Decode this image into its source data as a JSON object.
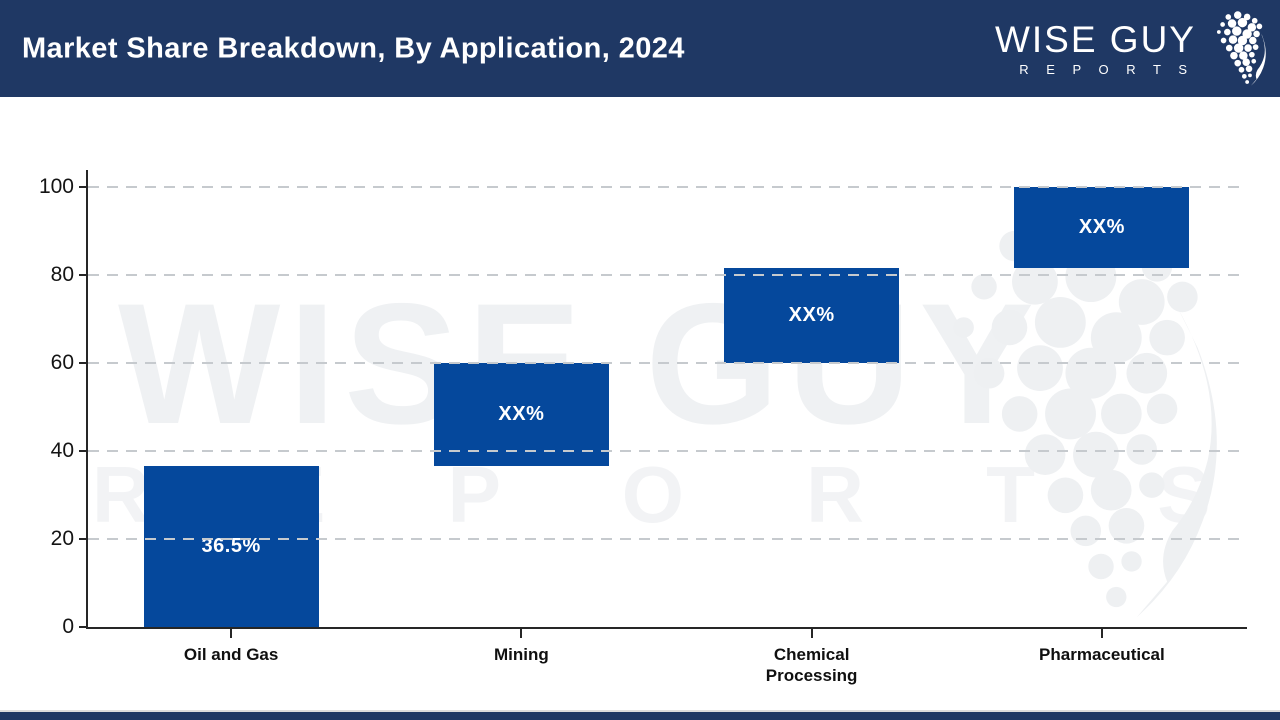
{
  "header": {
    "title": "Market Share Breakdown, By Application, 2024",
    "logo_line1": "WISE GUY",
    "logo_line2": "R E P O R T S",
    "bg_color": "#1f3864"
  },
  "watermark": {
    "line1": "WISE GUY",
    "line2": "R E P O R T S"
  },
  "chart_data": {
    "type": "bar",
    "variant": "waterfall",
    "title": "Market Share Breakdown, By Application, 2024",
    "unit": "percent market share",
    "categories": [
      "Oil and Gas",
      "Mining",
      "Chemical Processing",
      "Pharmaceutical"
    ],
    "segments": [
      {
        "category": "Oil and Gas",
        "start": 0,
        "end": 36.5,
        "label": "36.5%"
      },
      {
        "category": "Mining",
        "start": 36.5,
        "end": 60,
        "label": "XX%"
      },
      {
        "category": "Chemical Processing",
        "start": 60,
        "end": 81.5,
        "label": "XX%"
      },
      {
        "category": "Pharmaceutical",
        "start": 81.5,
        "end": 100,
        "label": "XX%"
      }
    ],
    "yticks": [
      0,
      20,
      40,
      60,
      80,
      100
    ],
    "ylim": [
      0,
      104
    ],
    "bar_color": "#05489c",
    "grid": {
      "style": "dashed",
      "horizontal": true,
      "color": "#c6cace"
    },
    "axis_color": "#262626",
    "legend": null
  }
}
